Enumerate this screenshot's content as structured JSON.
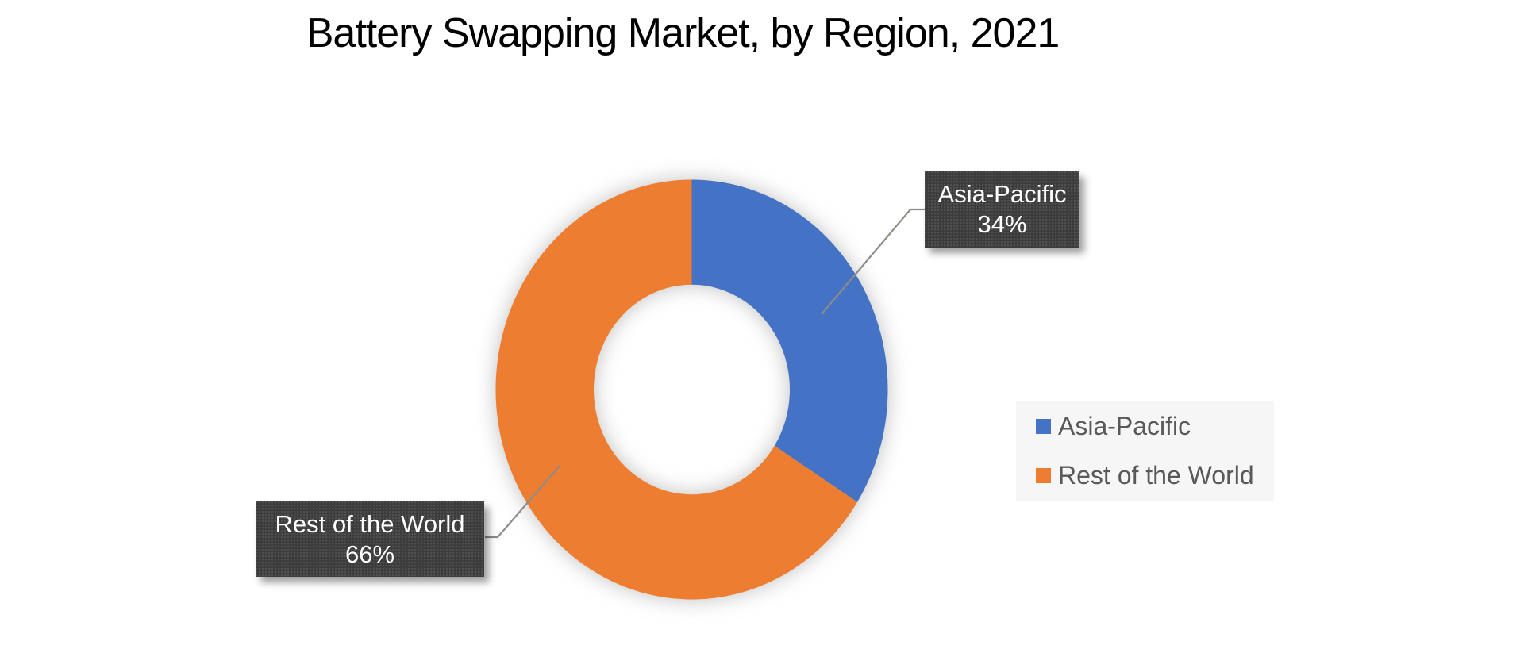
{
  "title": {
    "text": "Battery Swapping Market, by Region, 2021"
  },
  "chart_data": {
    "type": "pie",
    "subtype": "donut",
    "title": "Battery Swapping Market, by Region, 2021",
    "categories": [
      "Asia-Pacific",
      "Rest of the World"
    ],
    "values": [
      34,
      66
    ],
    "unit": "percent",
    "colors": [
      "#4472C4",
      "#ED7D31"
    ],
    "donut_hole_ratio": 0.5,
    "start_angle_deg": 0,
    "direction": "clockwise",
    "legend_position": "center-right",
    "data_labels": [
      {
        "label": "Asia-Pacific",
        "value": "34%"
      },
      {
        "label": "Rest of the World",
        "value": "66%"
      }
    ]
  },
  "callouts": [
    {
      "label": "Asia-Pacific",
      "value": "34%"
    },
    {
      "label": "Rest of the World",
      "value": "66%"
    }
  ],
  "legend": {
    "items": [
      {
        "label": "Asia-Pacific",
        "color": "#4472C4"
      },
      {
        "label": "Rest of the World",
        "color": "#ED7D31"
      }
    ]
  },
  "colors": {
    "slice_asia_pacific": "#4472C4",
    "slice_rest_of_world": "#ED7D31",
    "callout_background": "#3c3c3c",
    "callout_text": "#ffffff",
    "leader_line": "#8f8b85",
    "legend_background": "#f6f6f6",
    "legend_text": "#595959",
    "title_text": "#000000"
  }
}
